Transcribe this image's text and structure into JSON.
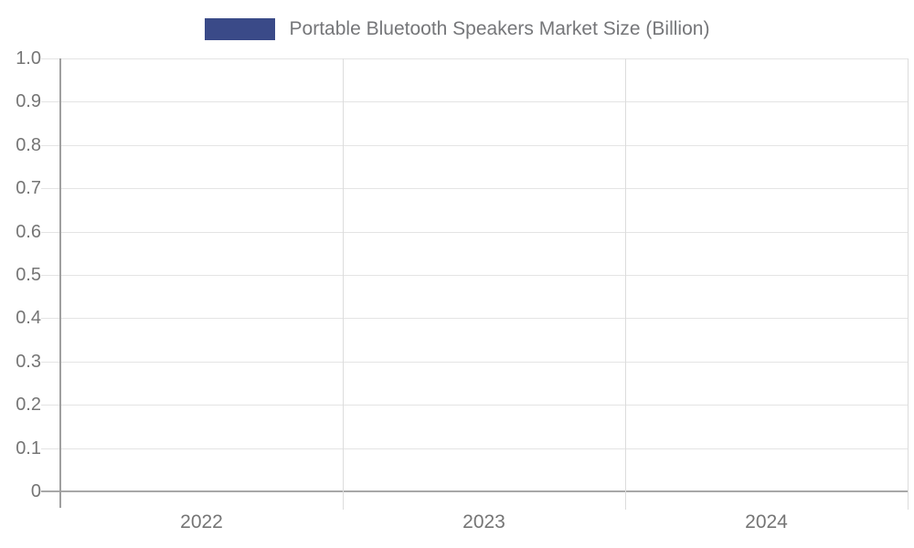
{
  "legend": {
    "swatch_color": "#3A4A88",
    "label": "Portable Bluetooth Speakers Market Size (Billion)"
  },
  "chart_data": {
    "type": "bar",
    "title": "Portable Bluetooth Speakers Market Size (Billion)",
    "categories": [
      "2022",
      "2023",
      "2024"
    ],
    "series": [
      {
        "name": "Portable Bluetooth Speakers Market Size (Billion)",
        "color": "#3A4A88",
        "values": [
          null,
          null,
          null
        ]
      }
    ],
    "xlabel": "",
    "ylabel": "",
    "ylim": [
      0,
      1.0
    ],
    "ytick_labels": [
      "0",
      "0.1",
      "0.2",
      "0.3",
      "0.4",
      "0.5",
      "0.6",
      "0.7",
      "0.8",
      "0.9",
      "1.0"
    ],
    "ytick_values": [
      0,
      0.1,
      0.2,
      0.3,
      0.4,
      0.5,
      0.6,
      0.7,
      0.8,
      0.9,
      1.0
    ],
    "grid": true,
    "legend_position": "top",
    "plot_note": "no data rendered in plot area"
  },
  "colors": {
    "grid_horizontal": "#e4e4e4",
    "grid_vertical": "#dcdcdc",
    "axis_line": "#9f9f9f",
    "zero_line": "#a8a8a8",
    "tick_text": "#757575",
    "legend_text": "#757679"
  }
}
